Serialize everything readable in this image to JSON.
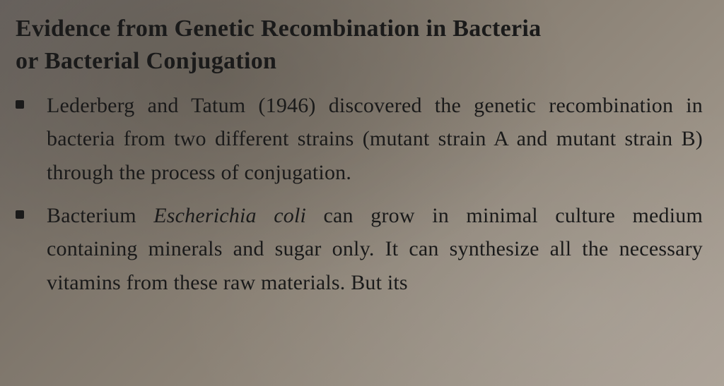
{
  "heading": {
    "line1": "Evidence from Genetic Recombination in Bacteria",
    "line2": "or Bacterial Conjugation"
  },
  "bullets": [
    {
      "text": "Lederberg and Tatum (1946) discovered the genetic recombination in bacteria from two different strains (mutant strain A and mutant strain B) through the process of conjugation."
    },
    {
      "prefix": "Bacterium ",
      "italic": "Escherichia coli",
      "suffix": " can grow in minimal culture medium containing minerals and sugar only. It can synthesize all the necessary vitamins from these raw materials. But its"
    }
  ],
  "colors": {
    "text": "#1a1a1a",
    "bg_start": "#6b6560",
    "bg_end": "#aaa095"
  },
  "typography": {
    "heading_fontsize": 34,
    "body_fontsize": 30,
    "font_family": "Georgia, Times New Roman, serif"
  }
}
